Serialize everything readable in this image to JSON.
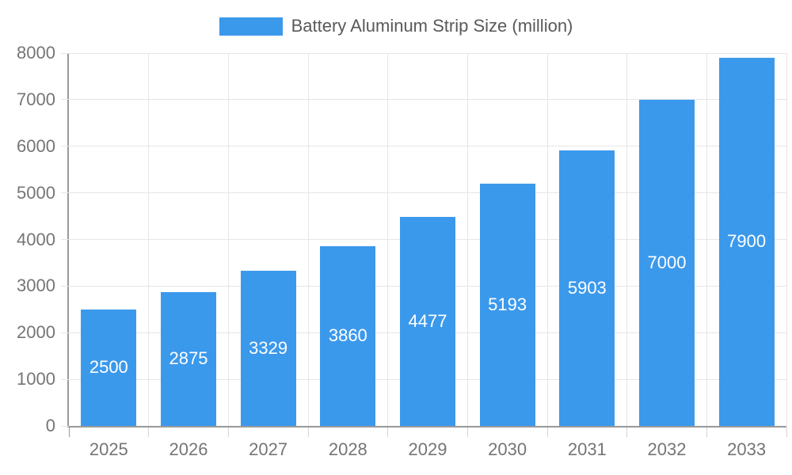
{
  "chart_data": {
    "type": "bar",
    "title": "Battery Aluminum Strip Size (million)",
    "categories": [
      "2025",
      "2026",
      "2027",
      "2028",
      "2029",
      "2030",
      "2031",
      "2032",
      "2033"
    ],
    "values": [
      2500,
      2875,
      3329,
      3860,
      4477,
      5193,
      5903,
      7000,
      7900
    ],
    "series": [
      {
        "name": "Battery Aluminum Strip Size (million)",
        "values": [
          2500,
          2875,
          3329,
          3860,
          4477,
          5193,
          5903,
          7000,
          7900
        ]
      }
    ],
    "xlabel": "",
    "ylabel": "",
    "ylim": [
      0,
      8000
    ],
    "yticks": [
      0,
      1000,
      2000,
      3000,
      4000,
      5000,
      6000,
      7000,
      8000
    ],
    "grid": true,
    "legend_position": "top-center",
    "value_labels": "inside-center"
  },
  "colors": {
    "bar": "#3B99EC",
    "grid_line": "#E6E6E6",
    "axis_line": "#999999",
    "tick": "#D4D4D4",
    "axis_label": "#757575",
    "legend_text": "#595959",
    "value_label": "#FFFFFF"
  }
}
